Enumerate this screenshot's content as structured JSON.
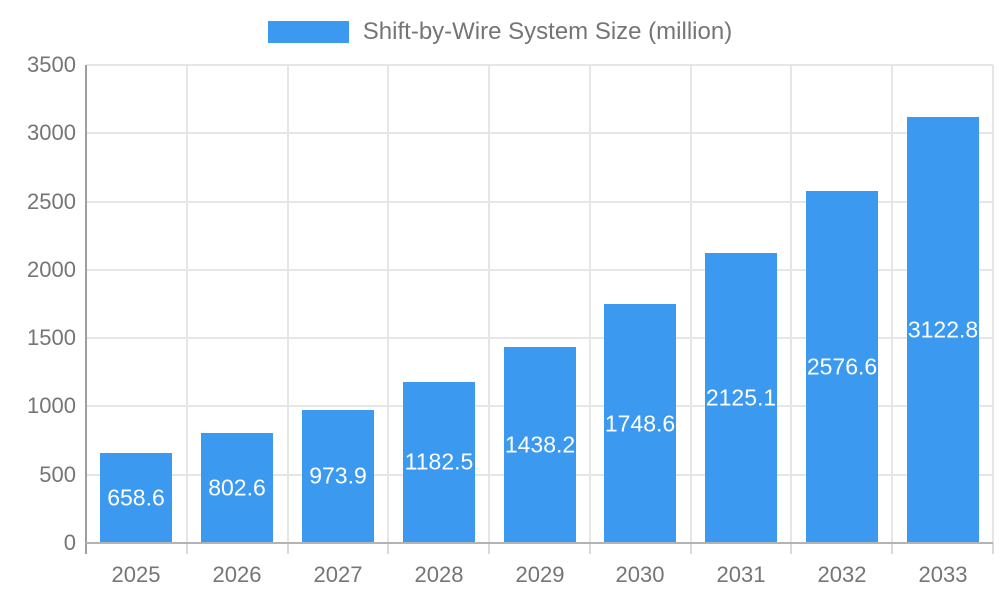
{
  "chart_data": {
    "type": "bar",
    "title": "Shift-by-Wire System Size (million)",
    "legend": "Shift-by-Wire System Size (million)",
    "legend_position": "top",
    "categories": [
      "2025",
      "2026",
      "2027",
      "2028",
      "2029",
      "2030",
      "2031",
      "2032",
      "2033"
    ],
    "values": [
      658.6,
      802.6,
      973.9,
      1182.5,
      1438.2,
      1748.6,
      2125.1,
      2576.6,
      3122.8
    ],
    "bar_labels": [
      "658.6",
      "802.6",
      "973.9",
      "1182.5",
      "1438.2",
      "1748.6",
      "2125.1",
      "2576.6",
      "3122.8"
    ],
    "xlabel": "",
    "ylabel": "",
    "ylim": [
      0,
      3500
    ],
    "yticks": [
      0,
      500,
      1000,
      1500,
      2000,
      2500,
      3000,
      3500
    ],
    "grid": true,
    "colors": {
      "bar": "#3B99F0",
      "grid": "#e6e6e6",
      "axis_line": "#9e9e9e",
      "baseline": "#b3b3b3",
      "tick": "#d9d9d9",
      "axis_text": "#757575",
      "bar_label_text": "#ffffff",
      "background": "#ffffff"
    }
  }
}
